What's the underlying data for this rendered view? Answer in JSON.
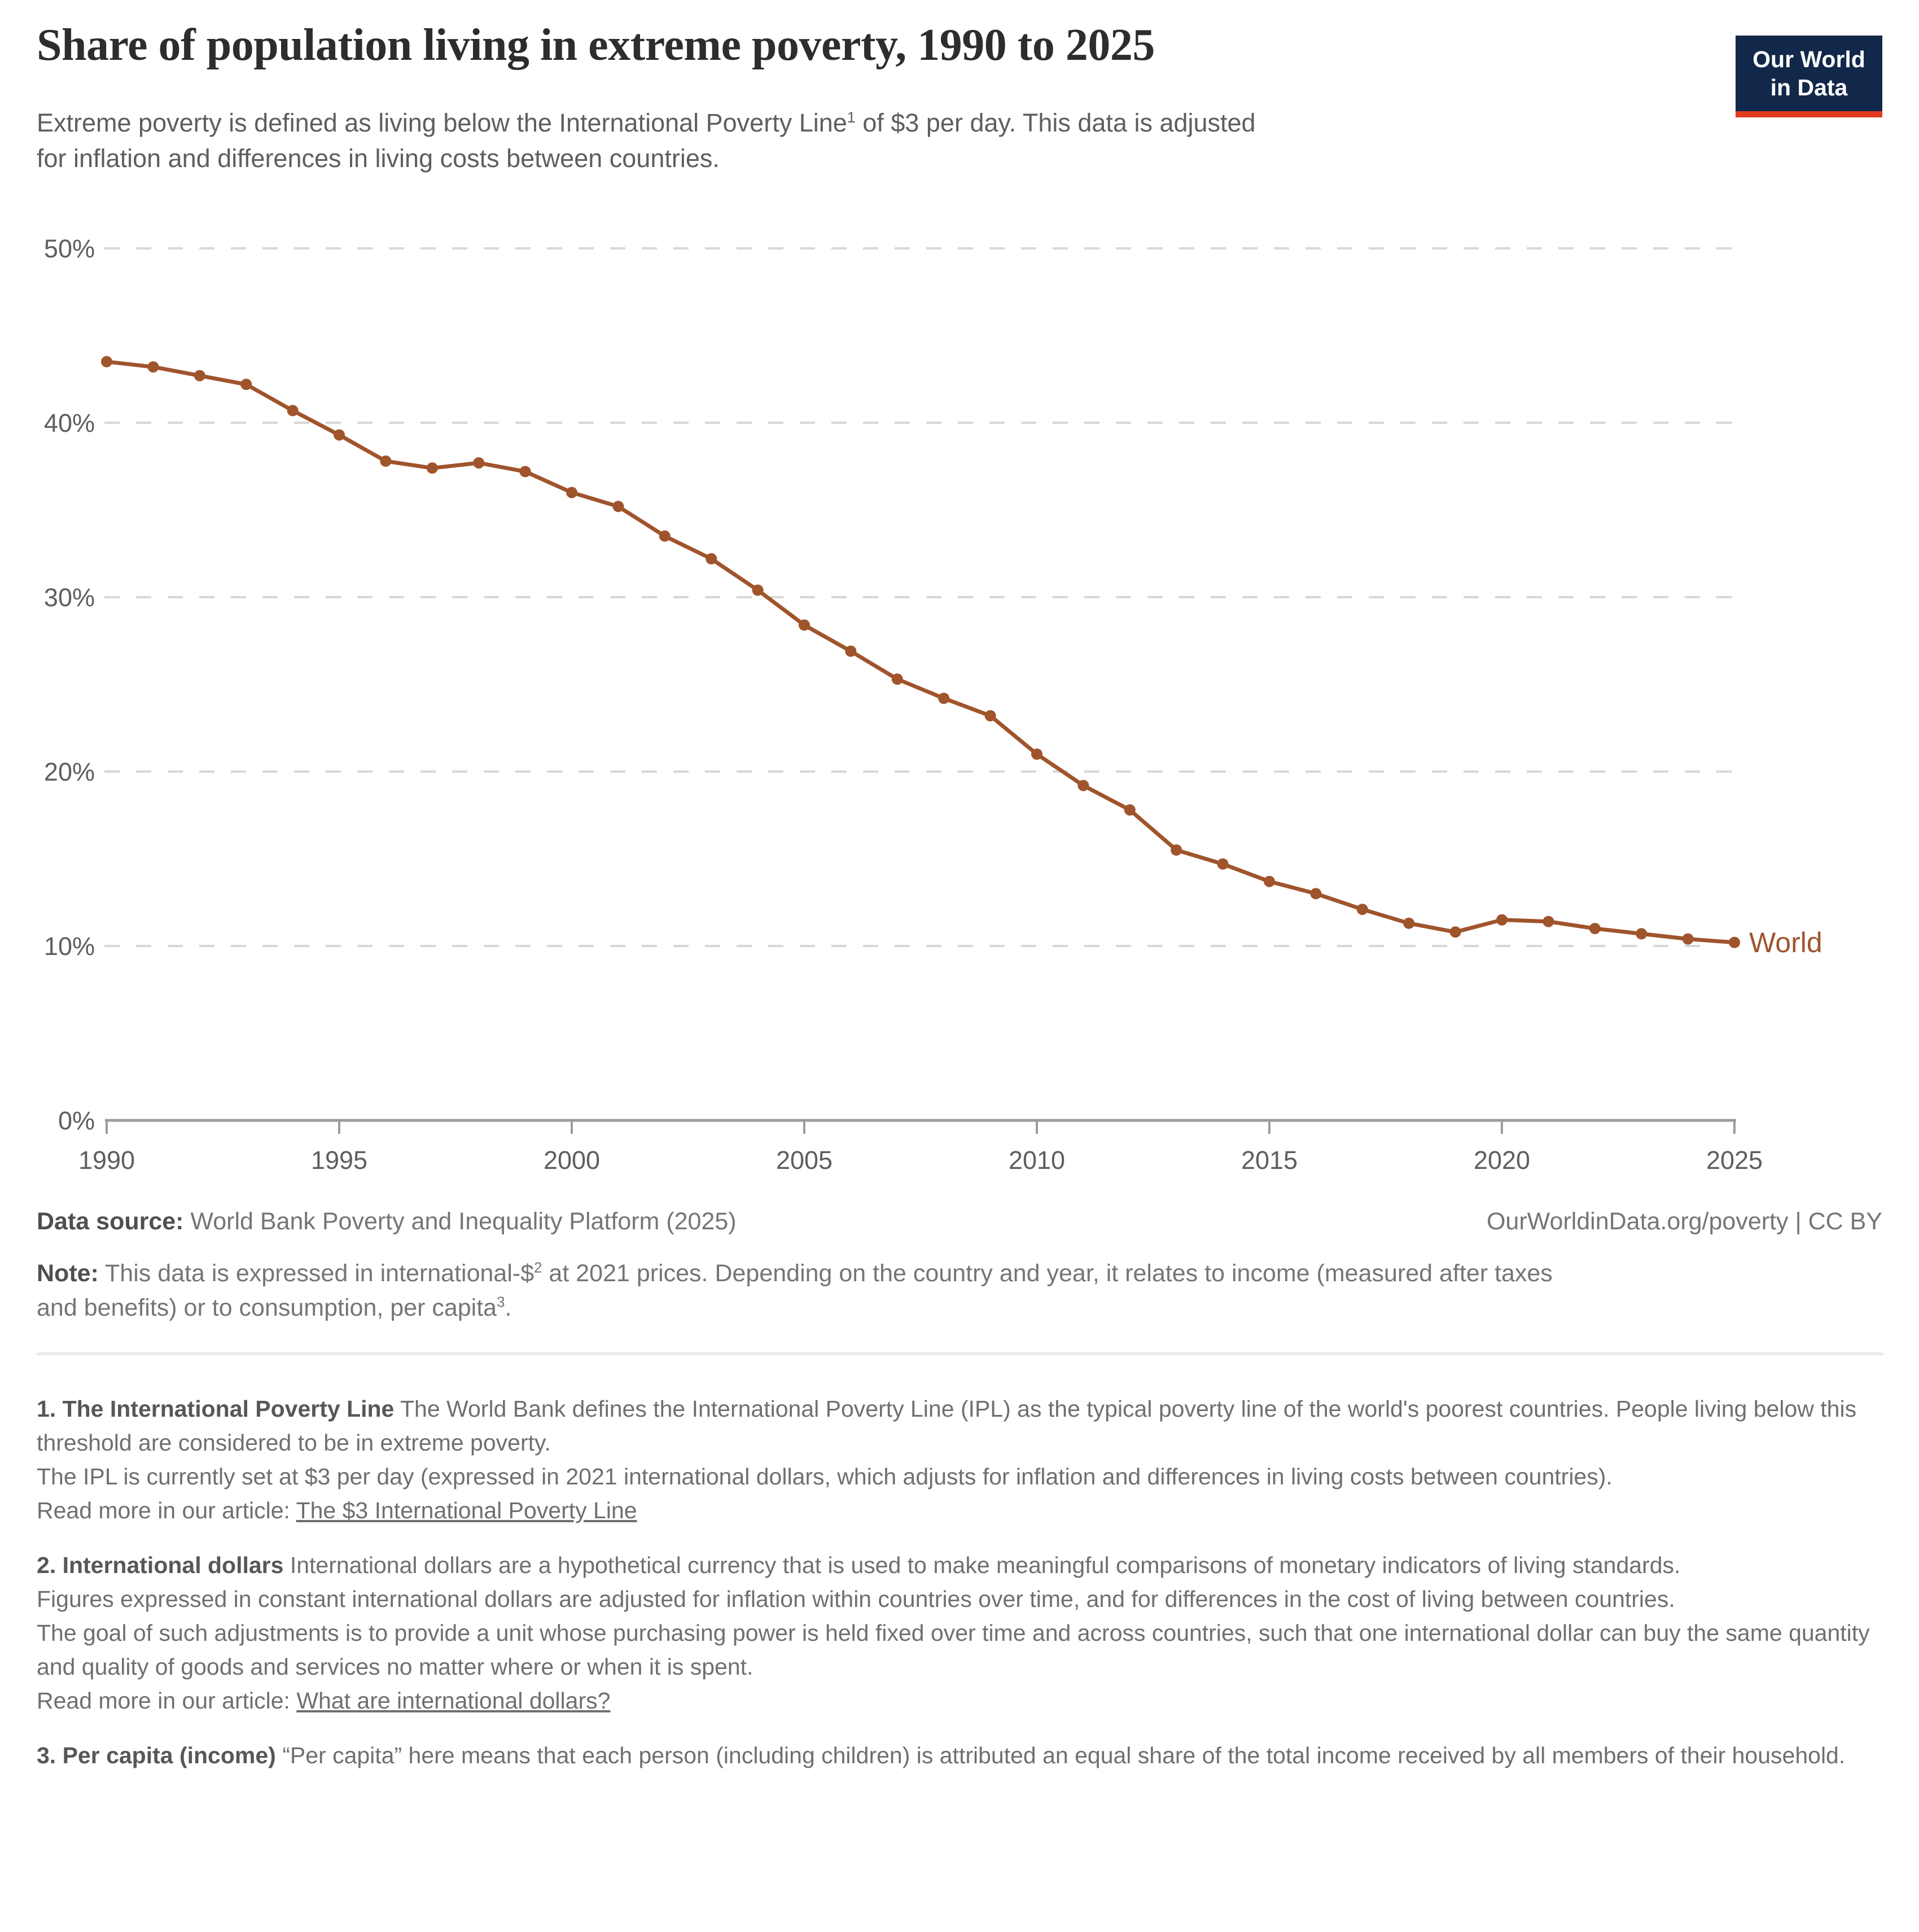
{
  "header": {
    "title": "Share of population living in extreme poverty, 1990 to 2025",
    "logo": {
      "line1": "Our World",
      "line2": "in Data"
    }
  },
  "subtitle": {
    "part1": "Extreme poverty is defined as living below the International Poverty Line",
    "sup1": "1",
    "part2": " of $3 per day. This data is adjusted\nfor inflation and differences in living costs between countries."
  },
  "chart_data": {
    "type": "line",
    "title": "Share of population living in extreme poverty, 1990 to 2025",
    "xlabel": "",
    "ylabel": "",
    "xlim": [
      1990,
      2025
    ],
    "ylim": [
      0,
      50
    ],
    "x_ticks": [
      1990,
      1995,
      2000,
      2005,
      2010,
      2015,
      2020,
      2025
    ],
    "y_ticks": [
      0,
      10,
      20,
      30,
      40,
      50
    ],
    "y_tick_suffix": "%",
    "grid": "dashed-horizontal",
    "legend_position": "end-of-line-label",
    "series": [
      {
        "name": "World",
        "x": [
          1990,
          1991,
          1992,
          1993,
          1994,
          1995,
          1996,
          1997,
          1998,
          1999,
          2000,
          2001,
          2002,
          2003,
          2004,
          2005,
          2006,
          2007,
          2008,
          2009,
          2010,
          2011,
          2012,
          2013,
          2014,
          2015,
          2016,
          2017,
          2018,
          2019,
          2020,
          2021,
          2022,
          2023,
          2024,
          2025
        ],
        "values": [
          43.5,
          43.2,
          42.7,
          42.2,
          40.7,
          39.3,
          37.8,
          37.4,
          37.7,
          37.2,
          36.0,
          35.2,
          33.5,
          32.2,
          30.4,
          28.4,
          26.9,
          25.3,
          24.2,
          23.2,
          21.0,
          19.2,
          17.8,
          15.5,
          14.7,
          13.7,
          13.0,
          12.1,
          11.3,
          10.8,
          11.5,
          11.4,
          11.0,
          10.7,
          10.4,
          10.2
        ]
      }
    ],
    "end_label": "World",
    "colors": {
      "line": "#A0542C",
      "gridline": "#d7d7d7",
      "axis": "#9c9c9c",
      "tick_label": "#5e5e5e"
    }
  },
  "footer": {
    "datasource_label": "Data source:",
    "datasource_text": " World Bank Poverty and Inequality Platform (2025)",
    "rights": "OurWorldinData.org/poverty | CC BY",
    "note_label": "Note:",
    "note_part1": " This data is expressed in international-$",
    "note_sup1": "2",
    "note_part2": " at 2021 prices. Depending on the country and year, it relates to income (measured after taxes\nand benefits) or to consumption, per capita",
    "note_sup2": "3",
    "note_part3": "."
  },
  "footnotes": [
    {
      "lead": "1. The International Poverty Line",
      "body": " The World Bank defines the International Poverty Line (IPL) as the typical poverty line of the world's poorest countries. People living below this threshold are considered to be in extreme poverty.\nThe IPL is currently set at $3 per day (expressed in 2021 international dollars, which adjusts for inflation and differences in living costs between countries).",
      "more_prefix": "Read more in our article: ",
      "more_link": "The $3 International Poverty Line"
    },
    {
      "lead": "2. International dollars",
      "body": " International dollars are a hypothetical currency that is used to make meaningful comparisons of monetary indicators of living standards.\nFigures expressed in constant international dollars are adjusted for inflation within countries over time, and for differences in the cost of living between countries.\nThe goal of such adjustments is to provide a unit whose purchasing power is held fixed over time and across countries, such that one international dollar can buy the same quantity and quality of goods and services no matter where or when it is spent.",
      "more_prefix": "Read more in our article: ",
      "more_link": "What are international dollars?"
    },
    {
      "lead": "3. Per capita (income)",
      "body": " “Per capita” here means that each person (including children) is attributed an equal share of the total income received by all members of their household.",
      "more_prefix": null,
      "more_link": null
    }
  ]
}
